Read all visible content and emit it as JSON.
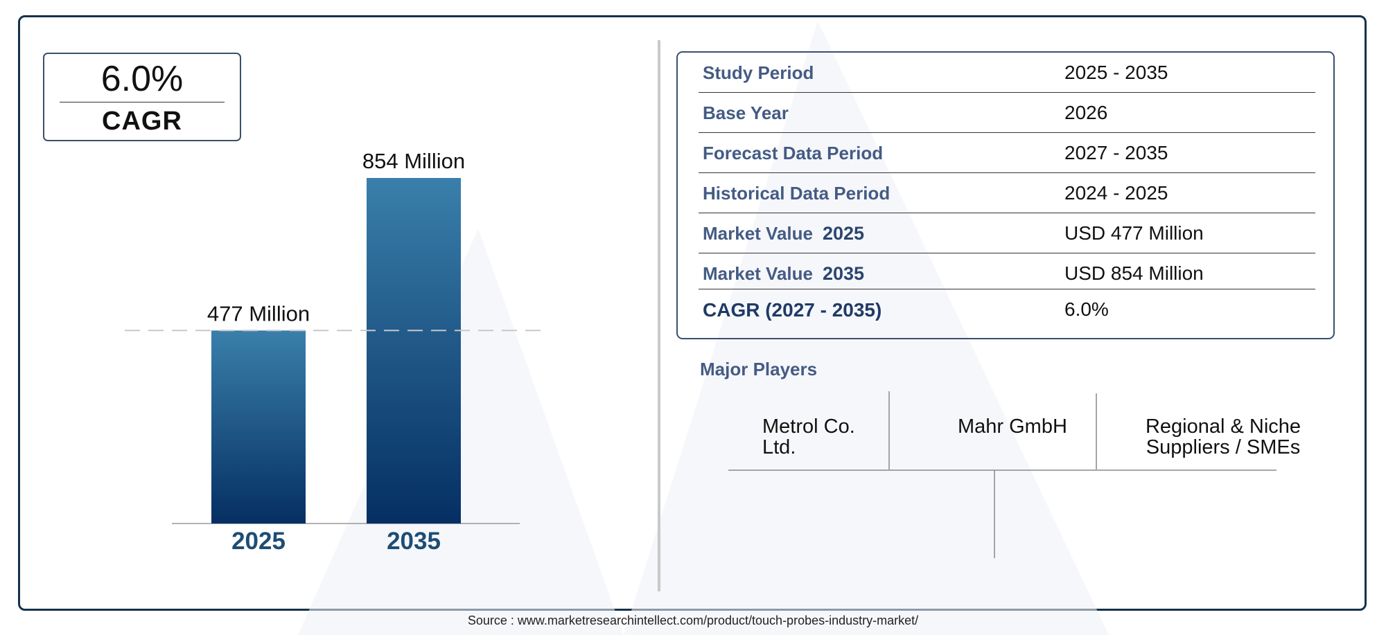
{
  "cagr_box": {
    "value": "6.0%",
    "label": "CAGR"
  },
  "chart_data": {
    "type": "bar",
    "categories": [
      "2025",
      "2035"
    ],
    "values": [
      477,
      854
    ],
    "value_labels": [
      "477 Million",
      "854 Million"
    ],
    "unit": "Million",
    "reference_line": "dashed line at the 2025 value"
  },
  "info_table": {
    "rows": [
      {
        "label": "Study Period",
        "year": "",
        "value": "2025 - 2035"
      },
      {
        "label": "Base Year",
        "year": "",
        "value": "2026"
      },
      {
        "label": "Forecast Data Period",
        "year": "",
        "value": "2027 - 2035"
      },
      {
        "label": "Historical Data Period",
        "year": "",
        "value": "2024 - 2025"
      },
      {
        "label": "Market Value",
        "year": "2025",
        "value": "USD 477 Million"
      },
      {
        "label": "Market Value",
        "year": "2035",
        "value": "USD 854 Million"
      },
      {
        "label": "CAGR (2027 - 2035)",
        "year": "",
        "value": "6.0%"
      }
    ]
  },
  "players": {
    "title": "Major Players",
    "items": [
      {
        "line1": "Metrol Co.",
        "line2": "Ltd."
      },
      {
        "line1": "Mahr GmbH",
        "line2": ""
      },
      {
        "line1": "Regional & Niche",
        "line2": "Suppliers / SMEs"
      }
    ]
  },
  "source": "Source : www.marketresearchintellect.com/product/touch-probes-industry-market/",
  "colors": {
    "frame": "#14324a",
    "bar_top": "#3a7fab",
    "bar_bottom": "#052f63",
    "label_blue": "#445b84",
    "year_label": "#1d4d74"
  }
}
